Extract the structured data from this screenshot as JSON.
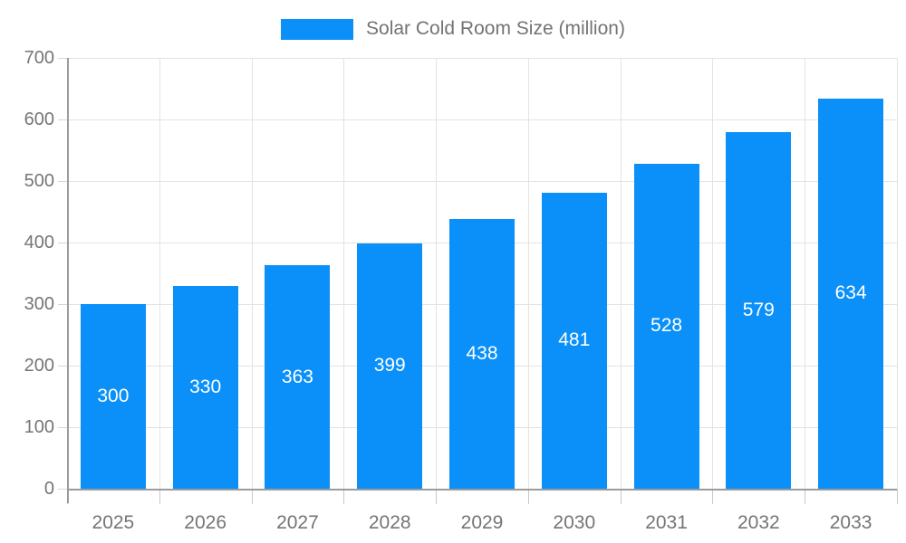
{
  "chart_data": {
    "type": "bar",
    "title": "Solar Cold Room Size (million)",
    "categories": [
      "2025",
      "2026",
      "2027",
      "2028",
      "2029",
      "2030",
      "2031",
      "2032",
      "2033"
    ],
    "values": [
      300,
      330,
      363,
      399,
      438,
      481,
      528,
      579,
      634
    ],
    "xlabel": "",
    "ylabel": "",
    "ylim": [
      0,
      700
    ],
    "ytick_step": 100,
    "grid": "on",
    "legend": {
      "position": "top",
      "label": "Solar Cold Room Size (million)"
    },
    "colors": {
      "bar": "#0a90f8",
      "bar_value_text": "#ffffff",
      "axis_line": "#9b9b9b",
      "grid_line": "#e3e3e3",
      "tick_text": "#757575",
      "legend_text": "#737373"
    }
  }
}
